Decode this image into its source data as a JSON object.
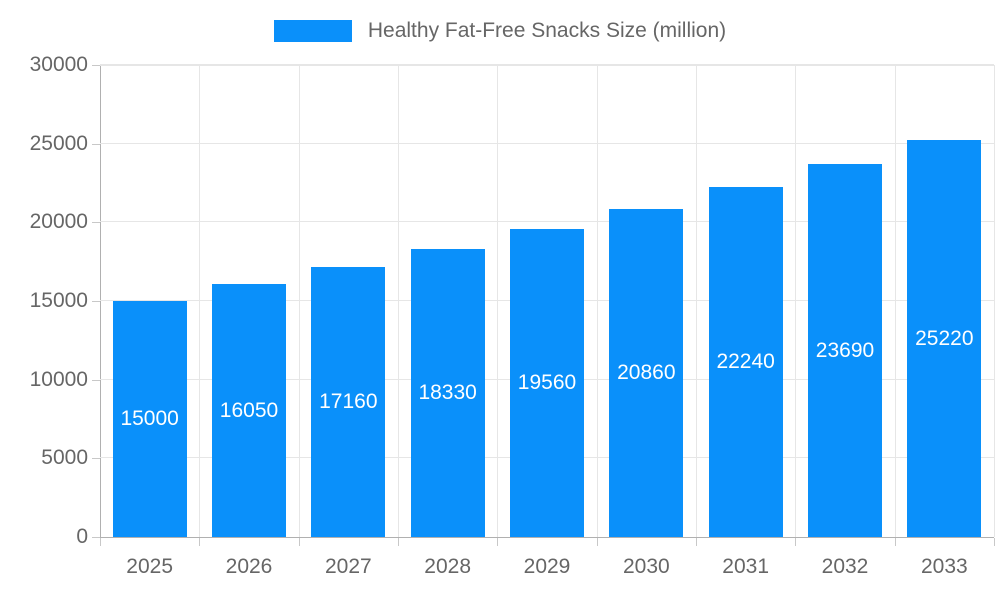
{
  "chart_data": {
    "type": "bar",
    "title": "",
    "legend": "Healthy Fat-Free Snacks Size (million)",
    "legend_position": "top-center",
    "categories": [
      "2025",
      "2026",
      "2027",
      "2028",
      "2029",
      "2030",
      "2031",
      "2032",
      "2033"
    ],
    "series": [
      {
        "name": "Healthy Fat-Free Snacks Size (million)",
        "values": [
          15000,
          16050,
          17160,
          18330,
          19560,
          20860,
          22240,
          23690,
          25220
        ]
      }
    ],
    "value_labels_shown": true,
    "xlabel": "",
    "ylabel": "",
    "ylim": [
      0,
      30000
    ],
    "ytick_step": 5000,
    "yticks": [
      0,
      5000,
      10000,
      15000,
      20000,
      25000,
      30000
    ],
    "grid": "on",
    "colors": {
      "bar": "#0a90fa",
      "axis_text": "#666666",
      "value_text": "#ffffff",
      "gridline": "#e6e6e6",
      "axis_line": "#b0b0b0",
      "tick": "#c8c8c8"
    }
  }
}
